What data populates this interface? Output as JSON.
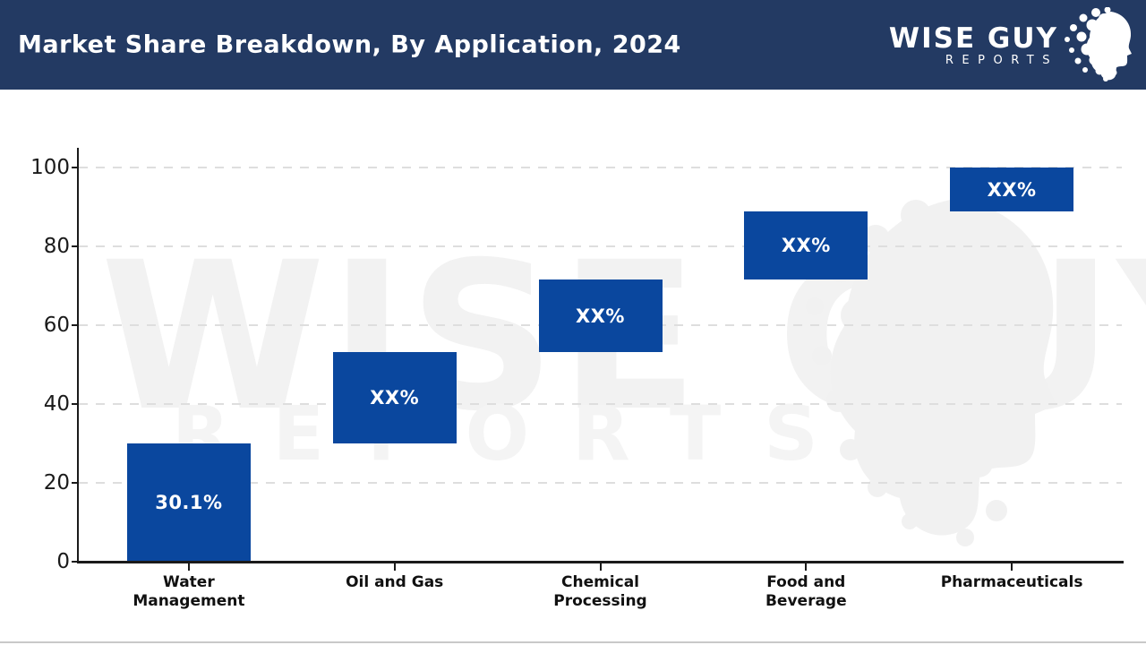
{
  "header": {
    "title": "Market Share Breakdown, By Application, 2024",
    "logo": {
      "line1": "WISE GUY",
      "line2": "REPORTS"
    }
  },
  "watermark": {
    "line1": "WISE GUY",
    "line2": "REPORTS"
  },
  "theme": {
    "header_bg": "#233a63",
    "header_text": "#ffffff",
    "bar_color": "#0a479e",
    "grid_color": "#dedede",
    "axis_color": "#1a1a1a",
    "watermark_color": "#f2f2f2",
    "divider_color": "#c9c9c9",
    "background": "#ffffff",
    "value_label_color": "#ffffff"
  },
  "chart_data": {
    "type": "bar",
    "subtype": "waterfall",
    "title": "Market Share Breakdown, By Application, 2024",
    "categories": [
      "Water Management",
      "Oil and Gas",
      "Chemical Processing",
      "Food and Beverage",
      "Pharmaceuticals"
    ],
    "segments": [
      {
        "category": "Water Management",
        "start": 0,
        "end": 30.1,
        "label": "30.1%"
      },
      {
        "category": "Oil and Gas",
        "start": 30.1,
        "end": 53.2,
        "label": "XX%"
      },
      {
        "category": "Chemical Processing",
        "start": 53.2,
        "end": 71.5,
        "label": "XX%"
      },
      {
        "category": "Food and Beverage",
        "start": 71.5,
        "end": 88.8,
        "label": "XX%"
      },
      {
        "category": "Pharmaceuticals",
        "start": 88.8,
        "end": 100,
        "label": "XX%"
      }
    ],
    "xlabel": "",
    "ylabel": "",
    "ylim": [
      0,
      105
    ],
    "yticks": [
      0,
      20,
      40,
      60,
      80,
      100
    ],
    "grid": "horizontal-dashed",
    "legend": null
  }
}
